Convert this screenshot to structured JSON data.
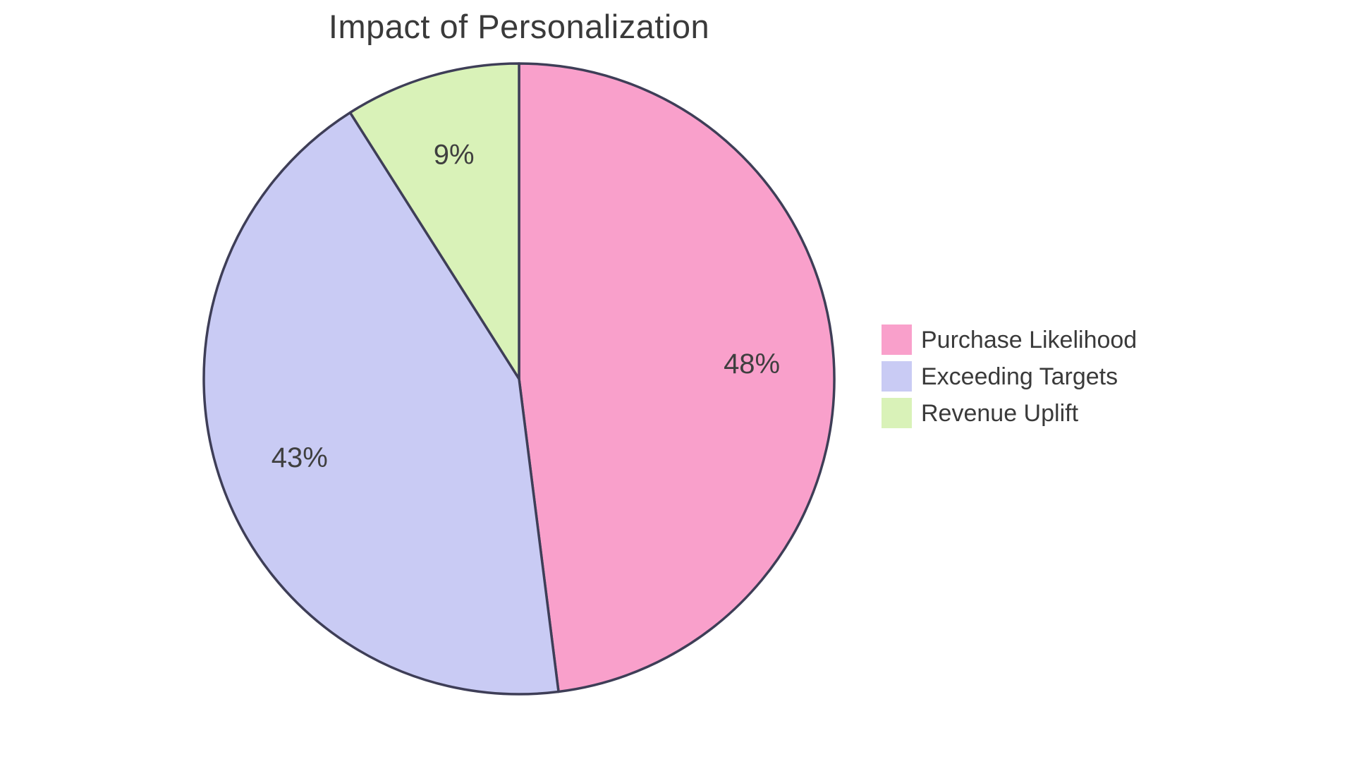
{
  "chart_data": {
    "type": "pie",
    "title": "Impact of Personalization",
    "slices": [
      {
        "label": "Purchase Likelihood",
        "value": 48,
        "display": "48%",
        "color": "#f9a0cb"
      },
      {
        "label": "Exceeding Targets",
        "value": 43,
        "display": "43%",
        "color": "#c9cbf4"
      },
      {
        "label": "Revenue Uplift",
        "value": 9,
        "display": "9%",
        "color": "#d9f2b8"
      }
    ],
    "start_angle_deg": 0,
    "direction": "clockwise",
    "legend_position": "right",
    "style": {
      "stroke_color": "#3e3e57",
      "stroke_width": 3.5,
      "percent_label_color": "#3f3f3f",
      "title_color": "#3a3a3a",
      "background": "#ffffff"
    }
  }
}
